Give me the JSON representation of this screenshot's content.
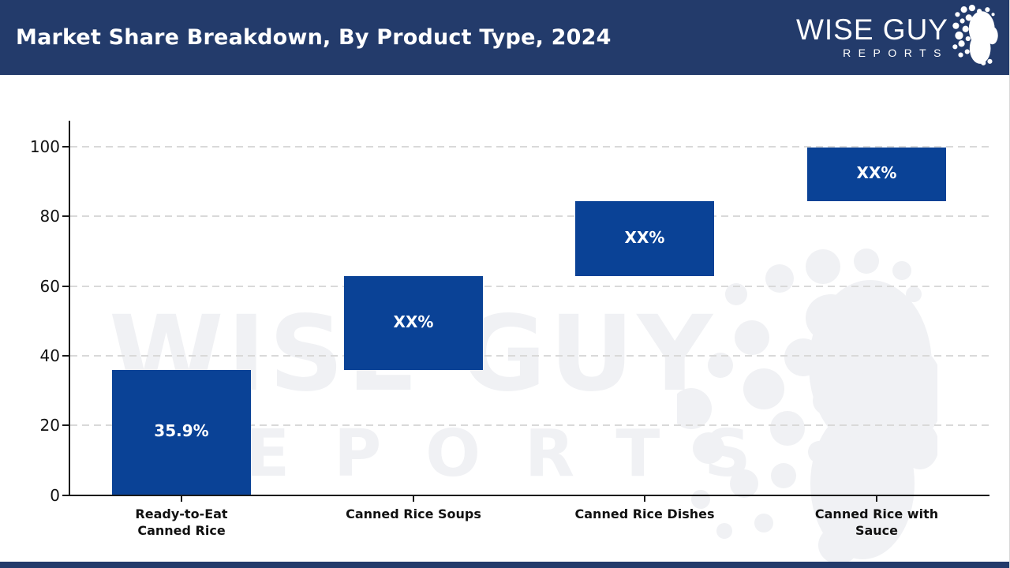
{
  "header": {
    "title": "Market Share Breakdown, By Product Type, 2024",
    "logo": {
      "name": "WISE GUY",
      "sub": "REPORTS"
    }
  },
  "icons": {
    "logo_head_icon": "dotted-head-profile",
    "watermark_head_icon": "dotted-head-profile"
  },
  "watermark": {
    "primary": "WISE GUY",
    "secondary": "REPORTS"
  },
  "chart_data": {
    "type": "bar",
    "subtype": "floating-waterfall",
    "title": "Market Share Breakdown, By Product Type, 2024",
    "categories": [
      "Ready-to-Eat\nCanned Rice",
      "Canned Rice Soups",
      "Canned Rice Dishes",
      "Canned Rice with\nSauce"
    ],
    "segments": [
      {
        "category": "Ready-to-Eat Canned Rice",
        "start": 0,
        "end": 35.9,
        "label": "35.9%"
      },
      {
        "category": "Canned Rice Soups",
        "start": 35.9,
        "end": 62.8,
        "label": "XX%"
      },
      {
        "category": "Canned Rice Dishes",
        "start": 62.8,
        "end": 84.4,
        "label": "XX%"
      },
      {
        "category": "Canned Rice with Sauce",
        "start": 84.4,
        "end": 99.8,
        "label": "XX%"
      }
    ],
    "yticks": [
      0,
      20,
      40,
      60,
      80,
      100
    ],
    "ylim": [
      0,
      107
    ],
    "xlabel": "",
    "ylabel": "",
    "grid": "horizontal-dashed",
    "legend": "none",
    "colors": {
      "bar": "#0a4296",
      "bar_label": "#ffffff",
      "grid": "#d9d9d9",
      "axis": "#1a1a1a",
      "header_bg": "#233b6b",
      "footer_bg": "#233b6b",
      "watermark": "#f0f1f4"
    }
  }
}
